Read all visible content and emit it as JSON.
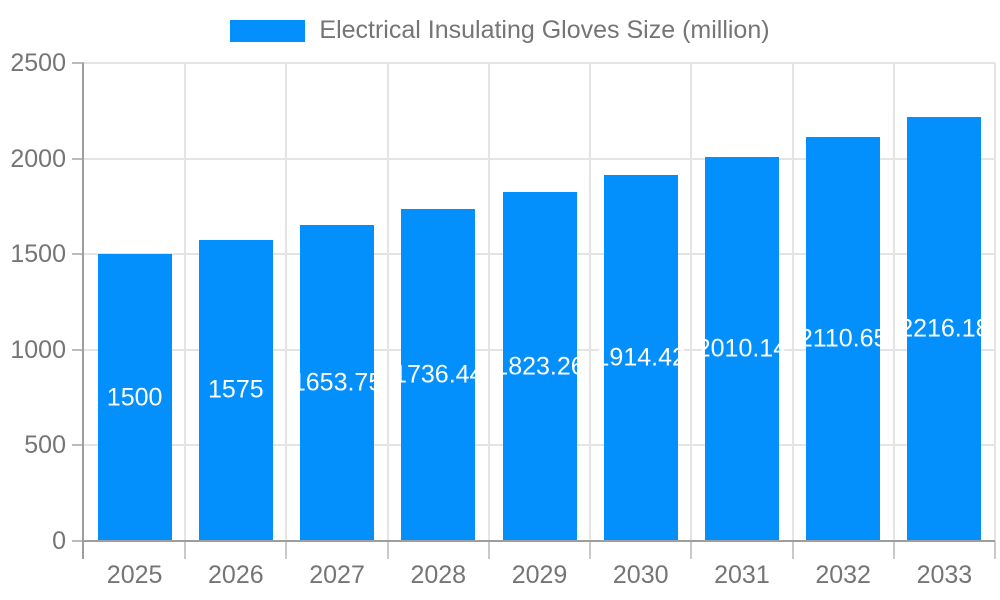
{
  "chart_data": {
    "type": "bar",
    "legend": {
      "label": "Electrical Insulating Gloves Size (million)",
      "position": "top"
    },
    "categories": [
      "2025",
      "2026",
      "2027",
      "2028",
      "2029",
      "2030",
      "2031",
      "2032",
      "2033"
    ],
    "values": [
      1500,
      1575,
      1653.75,
      1736.44,
      1823.26,
      1914.42,
      2010.14,
      2110.65,
      2216.18
    ],
    "value_labels": [
      "1500",
      "1575",
      "1653.75",
      "1736.44",
      "1823.26",
      "1914.42",
      "2010.14",
      "2110.65",
      "2216.18"
    ],
    "yticks": [
      0,
      500,
      1000,
      1500,
      2000,
      2500
    ],
    "ylim": [
      0,
      2500
    ],
    "xlabel": "",
    "ylabel": "",
    "grid": true,
    "colors": {
      "bar": "#0390fc",
      "axis_line": "#9e9e9e",
      "grid_line": "#e4e4e4",
      "tick": "#c9c9c9",
      "label_text": "#757575",
      "value_text": "#ffffff"
    }
  }
}
